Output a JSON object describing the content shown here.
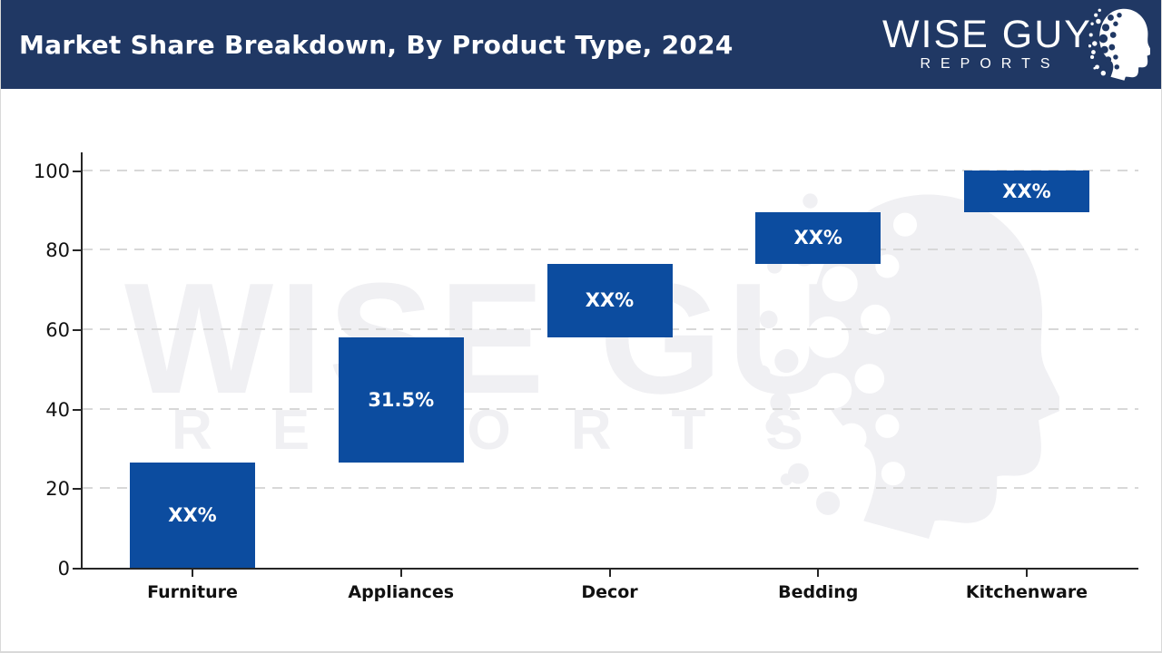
{
  "header": {
    "title": "Market Share Breakdown, By Product Type, 2024",
    "logo_line1": "WISE GUY",
    "logo_line2": "REPORTS"
  },
  "watermark": {
    "line1": "WISE GUY",
    "line2": "REPORTS"
  },
  "colors": {
    "header_bg": "#203864",
    "bar": "#0c4c9f",
    "bar_label": "#ffffff",
    "grid": "#d8d8d8",
    "axis": "#262626",
    "watermark": "#f0f0f3",
    "page_border": "#d9d9d9"
  },
  "chart_data": {
    "type": "bar",
    "subtype": "waterfall-floating-bars",
    "title": "Market Share Breakdown, By Product Type, 2024",
    "categories": [
      "Furniture",
      "Appliances",
      "Decor",
      "Bedding",
      "Kitchenware"
    ],
    "segments": [
      {
        "category": "Furniture",
        "base": 0,
        "top": 26.5,
        "value": 26.5,
        "label": "XX%"
      },
      {
        "category": "Appliances",
        "base": 26.5,
        "top": 58,
        "value": 31.5,
        "label": "31.5%"
      },
      {
        "category": "Decor",
        "base": 58,
        "top": 76.5,
        "value": 18.5,
        "label": "XX%"
      },
      {
        "category": "Bedding",
        "base": 76.5,
        "top": 89.5,
        "value": 13,
        "label": "XX%"
      },
      {
        "category": "Kitchenware",
        "base": 89.5,
        "top": 100,
        "value": 10.5,
        "label": "XX%"
      }
    ],
    "ylim": [
      0,
      104.5
    ],
    "yticks": [
      0,
      20,
      40,
      60,
      80,
      100
    ],
    "grid": "horizontal-dashed",
    "legend": null,
    "xlabel": "",
    "ylabel": ""
  }
}
